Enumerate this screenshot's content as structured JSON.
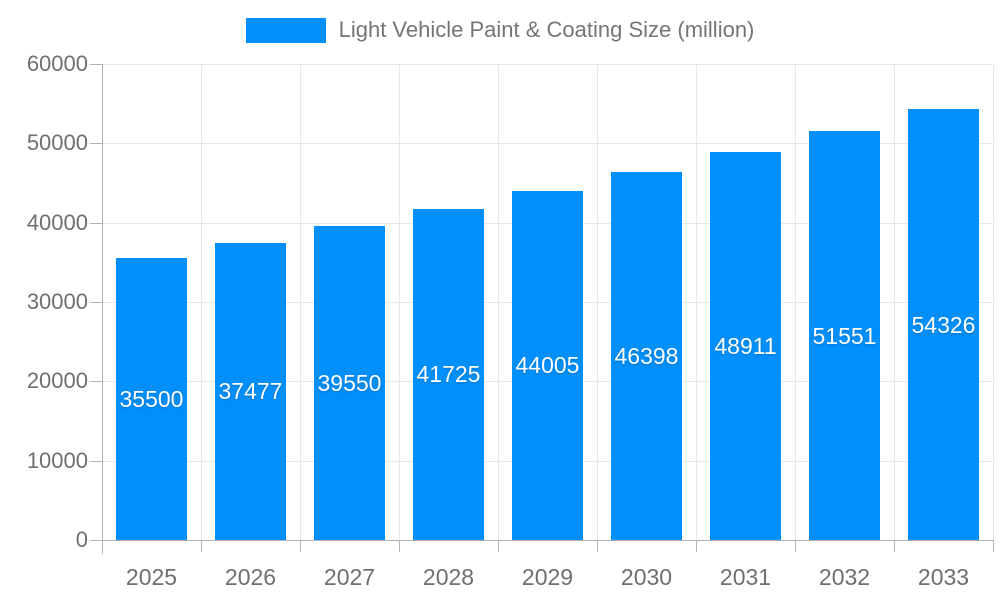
{
  "legend": {
    "label": "Light Vehicle Paint & Coating Size (million)"
  },
  "chart_data": {
    "type": "bar",
    "title": "Light Vehicle Paint & Coating Size (million)",
    "categories": [
      "2025",
      "2026",
      "2027",
      "2028",
      "2029",
      "2030",
      "2031",
      "2032",
      "2033"
    ],
    "values": [
      35500,
      37477,
      39550,
      41725,
      44005,
      46398,
      48911,
      51551,
      54326
    ],
    "value_labels": [
      "35500",
      "37477",
      "39550",
      "41725",
      "44005",
      "46398",
      "48911",
      "51551",
      "54326"
    ],
    "xlabel": "",
    "ylabel": "",
    "ylim": [
      0,
      60000
    ],
    "ytick_step": 10000,
    "ytick_labels": [
      "0",
      "10000",
      "20000",
      "30000",
      "40000",
      "50000",
      "60000"
    ],
    "grid": true,
    "legend_position": "top",
    "bar_color": "#008FFB",
    "value_label_color": "#ffffff",
    "axis_label_color": "#6f6f6f",
    "legend_text_color": "#757575"
  }
}
